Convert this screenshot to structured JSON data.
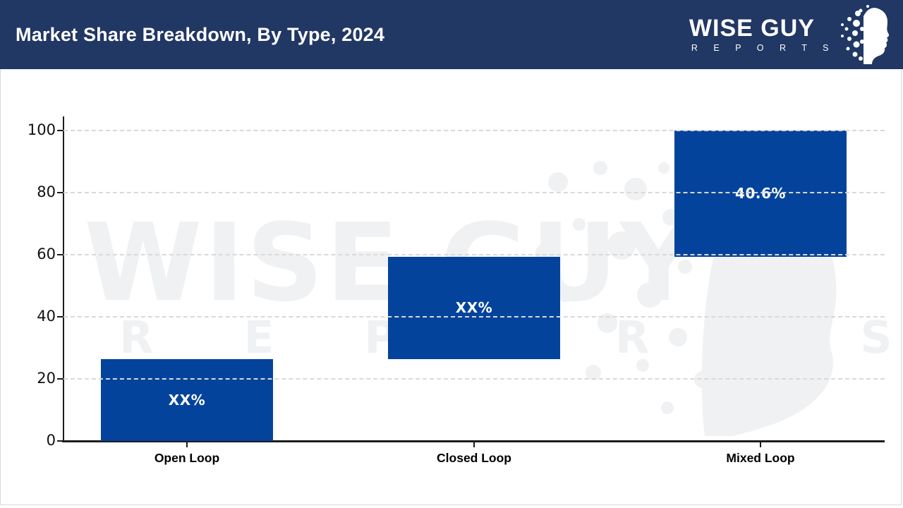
{
  "header": {
    "title": "Market Share Breakdown, By Type, 2024",
    "logo": {
      "line1": "WISE GUY",
      "line2": "R E P O R T S"
    }
  },
  "watermark": {
    "line1": "WISE GUY",
    "line2": "R E P O R T S"
  },
  "colors": {
    "header_bg": "#213764",
    "bar_blue": "#04439c",
    "gridline": "#d9d9d9",
    "axis": "#1c1c1c",
    "watermark": "#f0f1f3",
    "label_on_bar": "#ffffff"
  },
  "chart_data": {
    "type": "bar",
    "subtype": "floating-stacked-waterfall",
    "title": "Market Share Breakdown, By Type, 2024",
    "categories": [
      "Open Loop",
      "Closed Loop",
      "Mixed Loop"
    ],
    "segments": [
      {
        "category": "Open Loop",
        "from": 0,
        "to": 26.4,
        "label": "XX%"
      },
      {
        "category": "Closed Loop",
        "from": 26.4,
        "to": 59.4,
        "label": "XX%"
      },
      {
        "category": "Mixed Loop",
        "from": 59.4,
        "to": 100,
        "label": "40.6%"
      }
    ],
    "ylim": [
      0,
      100
    ],
    "yticks": [
      0,
      20,
      40,
      60,
      80,
      100
    ],
    "xlabel": "",
    "ylabel": "",
    "grid": "horizontal-dashed-over-bars",
    "legend": "none",
    "bar_color": "#04439c"
  }
}
